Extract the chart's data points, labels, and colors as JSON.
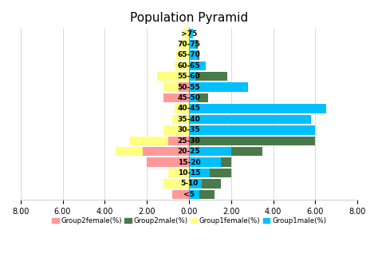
{
  "title": "Population Pyramid",
  "age_groups": [
    "<5",
    "5-10",
    "10-15",
    "15-20",
    "20-25",
    "25-30",
    "30-35",
    "35-40",
    "40-45",
    "45-50",
    "50-55",
    "55-60",
    "60-65",
    "65-70",
    "70-75",
    ">75"
  ],
  "group2_female": [
    0.8,
    0.0,
    0.0,
    2.0,
    2.2,
    1.0,
    0.0,
    0.0,
    0.0,
    1.2,
    0.5,
    0.0,
    0.0,
    0.0,
    0.0,
    0.0
  ],
  "group1_female": [
    0.0,
    1.2,
    1.0,
    1.5,
    3.5,
    2.8,
    1.2,
    0.8,
    0.7,
    0.8,
    1.2,
    1.5,
    0.7,
    0.6,
    0.5,
    0.3
  ],
  "group2_male": [
    1.2,
    1.5,
    2.0,
    2.0,
    3.5,
    6.0,
    2.5,
    2.2,
    1.5,
    0.9,
    1.0,
    1.8,
    0.5,
    0.5,
    0.4,
    0.1
  ],
  "group1_male": [
    0.5,
    0.6,
    1.0,
    1.5,
    2.0,
    0.0,
    6.0,
    5.8,
    6.5,
    0.4,
    2.8,
    0.3,
    0.8,
    0.4,
    0.3,
    0.2
  ],
  "color_group2_female": "#FF9999",
  "color_group1_female": "#FFFF80",
  "color_group2_male": "#4A7A4A",
  "color_group1_male": "#00BFFF",
  "xlim": 8.0,
  "background_color": "#ffffff",
  "legend_labels": [
    "Group2female(%)",
    "Group2male(%)",
    "Group1female(%)",
    "Group1male(%)"
  ]
}
